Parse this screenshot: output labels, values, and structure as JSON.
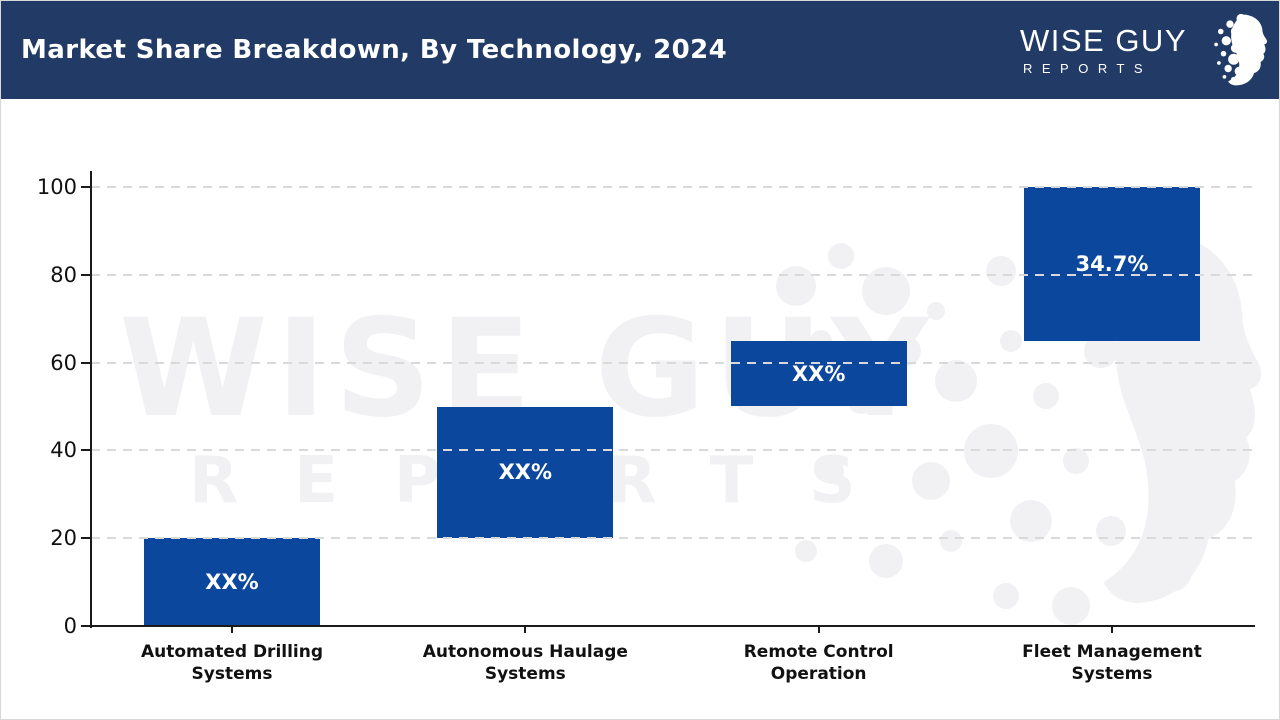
{
  "header": {
    "title": "Market Share Breakdown, By Technology, 2024",
    "bg_color": "#223a66",
    "brand": {
      "name": "WISE GUY",
      "sub": "REPORTS"
    }
  },
  "watermark": {
    "line1": "WISE GUY",
    "line2": "REPORTS"
  },
  "chart_data": {
    "type": "bar",
    "subtype": "floating-waterfall",
    "title": "Market Share Breakdown, By Technology, 2024",
    "categories": [
      "Automated Drilling\nSystems",
      "Autonomous Haulage\nSystems",
      "Remote Control\nOperation",
      "Fleet Management\nSystems"
    ],
    "bars": [
      {
        "start": 0,
        "end": 20,
        "label": "XX%"
      },
      {
        "start": 20,
        "end": 50,
        "label": "XX%"
      },
      {
        "start": 50,
        "end": 65,
        "label": "XX%"
      },
      {
        "start": 65,
        "end": 100,
        "label": "34.7%"
      }
    ],
    "ylim": [
      0,
      100
    ],
    "yticks": [
      0,
      20,
      40,
      60,
      80,
      100
    ],
    "xlabel": "",
    "ylabel": "",
    "grid": "horizontal-dashed",
    "grid_over_bars": true,
    "legend": "none",
    "bar_color": "#0c479e",
    "bar_label_color": "#ffffff",
    "axis_color": "#1a1a1a",
    "gridline_color": "#d9d9d9",
    "watermark_color": "#f1f1f4"
  }
}
